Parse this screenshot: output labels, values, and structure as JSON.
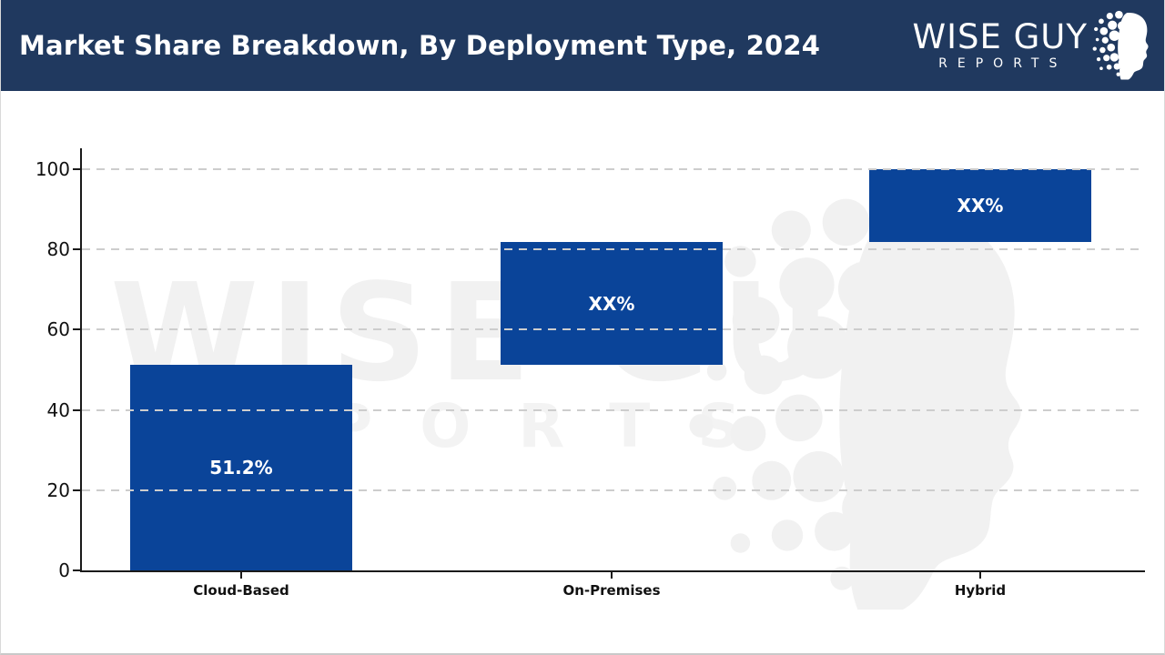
{
  "header": {
    "title": "Market Share Breakdown, By Deployment Type, 2024",
    "logo": {
      "line1": "WISE GUY",
      "line2": "REPORTS",
      "icon": "dotted-head-profile"
    },
    "background_color": "#20395f"
  },
  "watermark": {
    "line1": "WISE GUY",
    "line2": "REPORTS",
    "icon": "dotted-head-profile"
  },
  "chart_data": {
    "type": "bar",
    "subtype": "waterfall",
    "title": "Market Share Breakdown, By Deployment Type, 2024",
    "xlabel": "",
    "ylabel": "",
    "categories": [
      "Cloud-Based",
      "On-Premises",
      "Hybrid"
    ],
    "segments": [
      {
        "category": "Cloud-Based",
        "base": 0,
        "top": 51.2,
        "value_label": "51.2%"
      },
      {
        "category": "On-Premises",
        "base": 51.2,
        "top": 81.9,
        "value_label": "XX%"
      },
      {
        "category": "Hybrid",
        "base": 81.9,
        "top": 100,
        "value_label": "XX%"
      }
    ],
    "yticks": [
      0,
      20,
      40,
      60,
      80,
      100
    ],
    "ylim": [
      0,
      105
    ],
    "grid": "horizontal-dashed",
    "legend": "none",
    "bar_color": "#0a4499",
    "bar_label_color": "#ffffff",
    "gridline_color": "#cdcdcd",
    "axis_color": "#1a1a1a"
  }
}
